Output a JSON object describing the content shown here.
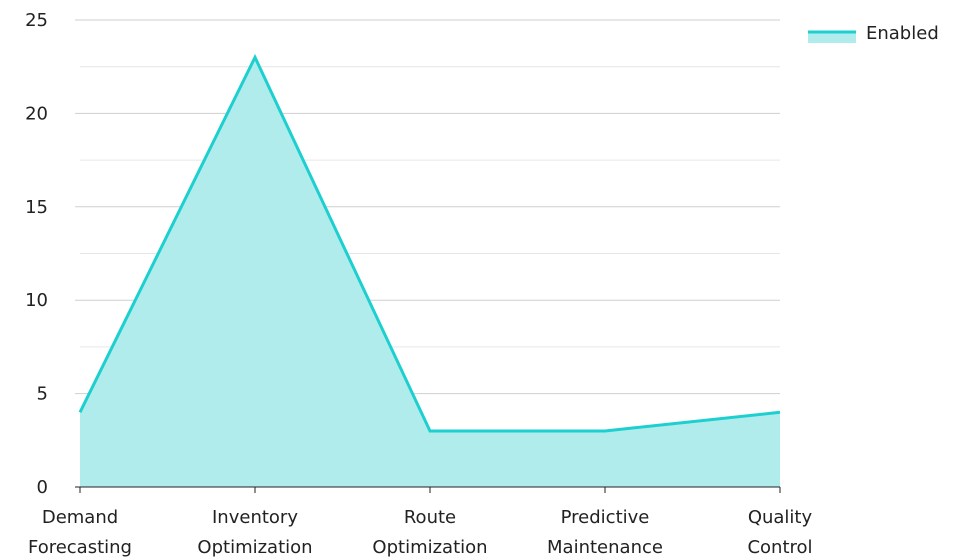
{
  "chart_data": {
    "type": "area",
    "categories": [
      [
        "Demand",
        "Forecasting"
      ],
      [
        "Inventory",
        "Optimization"
      ],
      [
        "Route",
        "Optimization"
      ],
      [
        "Predictive",
        "Maintenance"
      ],
      [
        "Quality",
        "Control"
      ]
    ],
    "series": [
      {
        "name": "Enabled",
        "values": [
          4,
          23,
          3,
          3,
          4
        ],
        "color": "#1dcfcf",
        "fill": "#b0ecec"
      }
    ],
    "ylim": [
      0,
      25
    ],
    "yticks": [
      0,
      5,
      10,
      15,
      20,
      25
    ],
    "grid": true,
    "legend": "top-right",
    "title": "",
    "xlabel": "",
    "ylabel": ""
  }
}
